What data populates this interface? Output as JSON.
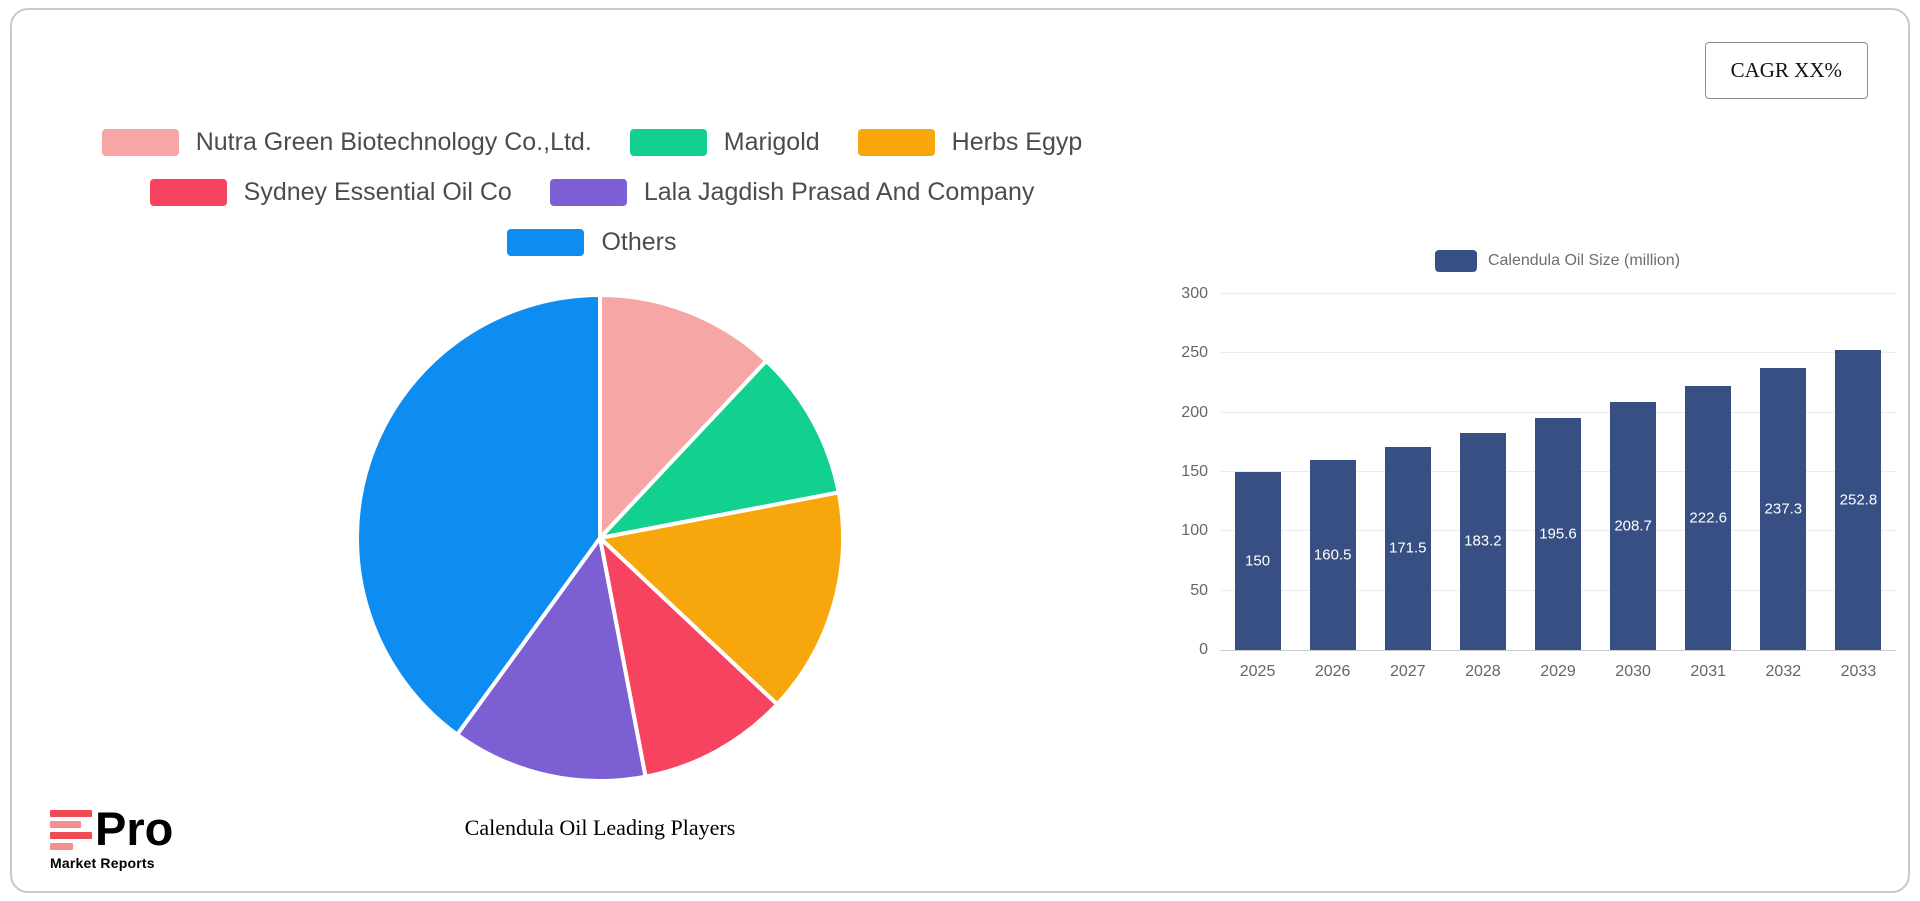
{
  "page": {
    "cagr_label": "CAGR XX%"
  },
  "logo": {
    "title": "Pro",
    "subtitle": "Market Reports"
  },
  "chart_data": [
    {
      "type": "pie",
      "title": "Calendula Oil Leading Players",
      "legend_position": "top",
      "legend_rows": [
        [
          0,
          1,
          2
        ],
        [
          3,
          4
        ],
        [
          5
        ]
      ],
      "series": [
        {
          "name": "Nutra Green Biotechnology Co.,Ltd.",
          "value": 12,
          "color": "#f6a6a4"
        },
        {
          "name": "Marigold",
          "value": 10,
          "color": "#12d18e"
        },
        {
          "name": "Herbs Egyp",
          "value": 15,
          "color": "#f7a70c"
        },
        {
          "name": "Sydney Essential Oil Co",
          "value": 10,
          "color": "#f64360"
        },
        {
          "name": "Lala Jagdish Prasad And Company",
          "value": 13,
          "color": "#7c5fd3"
        },
        {
          "name": "Others",
          "value": 40,
          "color": "#0d8cf2"
        }
      ]
    },
    {
      "type": "bar",
      "legend": "Calendula Oil Size (million)",
      "categories": [
        "2025",
        "2026",
        "2027",
        "2028",
        "2029",
        "2030",
        "2031",
        "2032",
        "2033"
      ],
      "values": [
        150,
        160.5,
        171.5,
        183.2,
        195.6,
        208.7,
        222.6,
        237.3,
        252.8
      ],
      "ylim": [
        0,
        300
      ],
      "yticks": [
        0,
        50,
        100,
        150,
        200,
        250,
        300
      ],
      "bar_color": "#384f84",
      "grid": true,
      "legend_position": "top"
    }
  ]
}
